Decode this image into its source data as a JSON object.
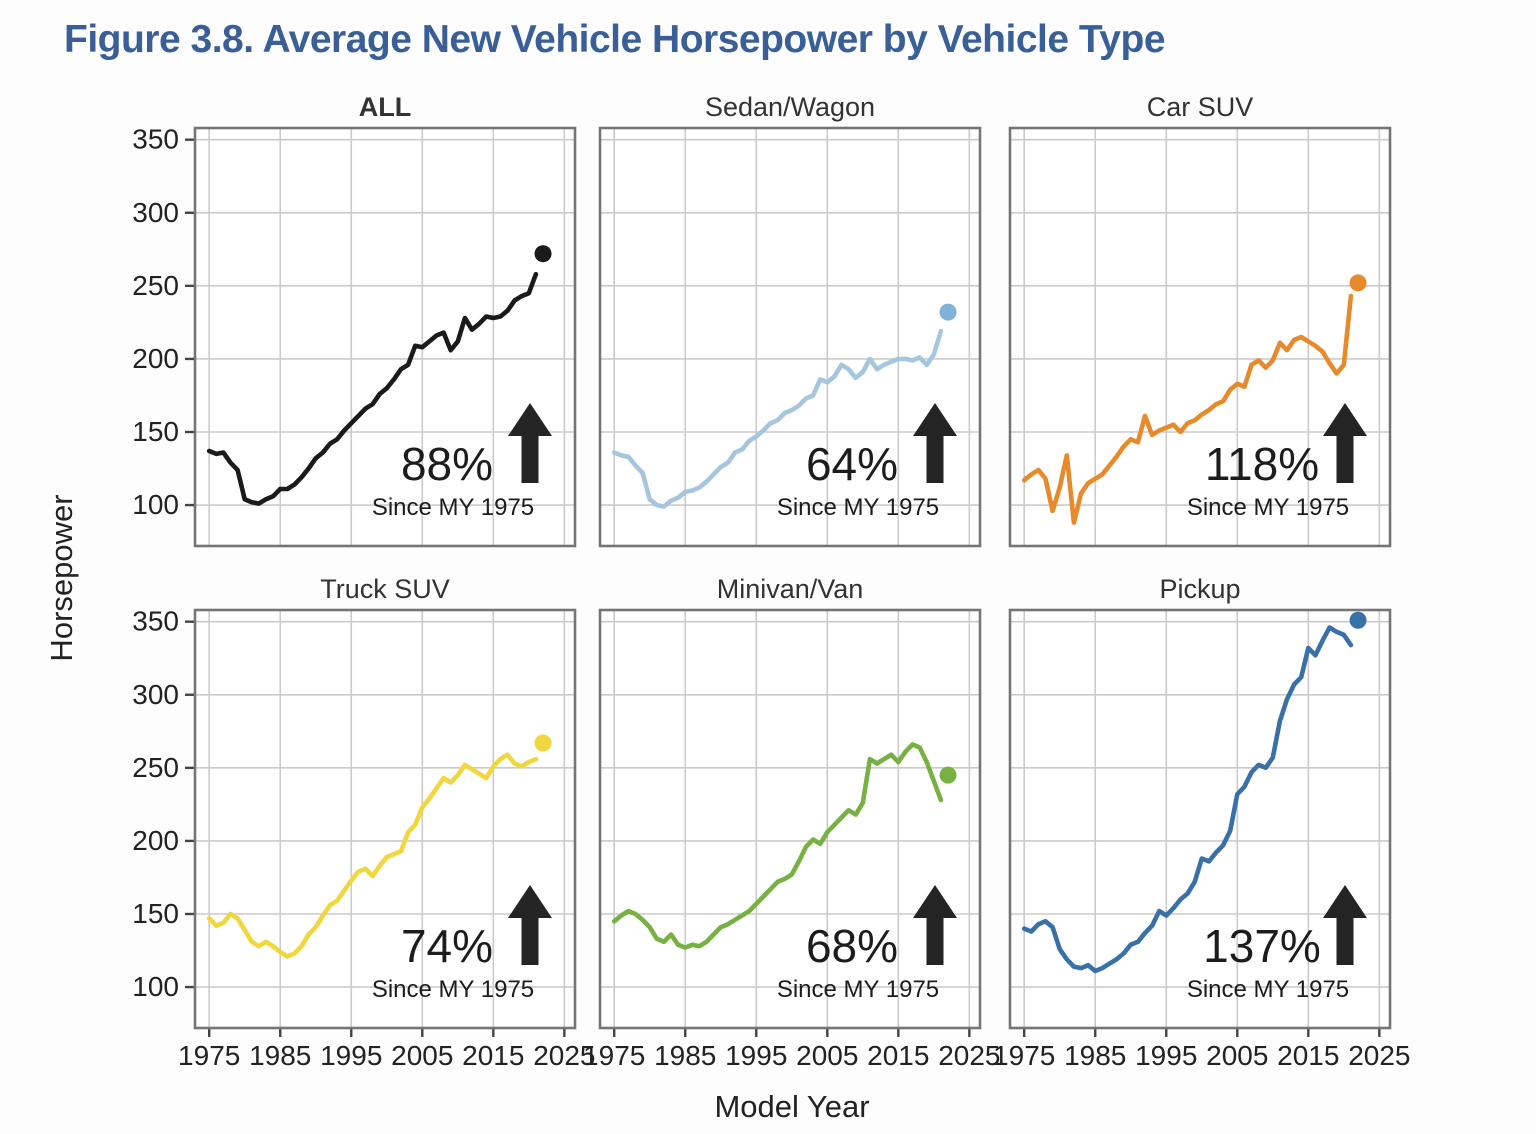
{
  "figure": {
    "title": "Figure 3.8. Average New Vehicle Horsepower by Vehicle Type",
    "title_color": "#3a5f96"
  },
  "chart_data": {
    "type": "line",
    "title": "Figure 3.8. Average New Vehicle Horsepower by Vehicle Type",
    "xlabel": "Model Year",
    "ylabel": "Horsepower",
    "x_ticks": [
      1975,
      1985,
      1995,
      2005,
      2015,
      2025
    ],
    "y_ticks": [
      100,
      150,
      200,
      250,
      300,
      350
    ],
    "x_range": [
      1973,
      2026.5
    ],
    "y_range": [
      72,
      358
    ],
    "grid": true,
    "legend": "none",
    "years_start": 1975,
    "line_years": "1975-2021 annual, separate dot = MY 2022",
    "arrow_icon_color": "#242424",
    "frame_color": "#757575",
    "grid_color": "#cbcbcb",
    "panels": [
      {
        "label": "ALL",
        "bold": true,
        "line_color": "#1a1a1a",
        "dot_color": "#1a1a1a",
        "pct": "88%",
        "since": "Since MY 1975",
        "values": [
          137,
          135,
          136,
          129,
          124,
          104,
          102,
          101,
          104,
          106,
          111,
          111,
          114,
          119,
          125,
          132,
          136,
          142,
          145,
          151,
          156,
          161,
          166,
          169,
          176,
          180,
          186,
          193,
          196,
          209,
          208,
          212,
          216,
          218,
          206,
          212,
          228,
          220,
          224,
          229,
          228,
          229,
          233,
          240,
          243,
          245,
          258
        ],
        "dot_year": 2022,
        "dot_value": 272
      },
      {
        "label": "Sedan/Wagon",
        "bold": false,
        "line_color": "#a5c6dc",
        "dot_color": "#7fb2d8",
        "pct": "64%",
        "since": "Since MY 1975",
        "values": [
          136,
          134,
          133,
          127,
          122,
          104,
          100,
          99,
          103,
          105,
          109,
          110,
          112,
          116,
          121,
          126,
          129,
          136,
          138,
          144,
          147,
          151,
          156,
          158,
          163,
          165,
          168,
          173,
          175,
          186,
          184,
          188,
          196,
          193,
          187,
          191,
          200,
          193,
          196,
          198,
          200,
          200,
          199,
          201,
          196,
          203,
          219
        ],
        "dot_year": 2022,
        "dot_value": 232
      },
      {
        "label": "Car SUV",
        "bold": false,
        "line_color": "#e68a2c",
        "dot_color": "#e68a2c",
        "pct": "118%",
        "since": "Since MY 1975",
        "values": [
          117,
          121,
          124,
          118,
          96,
          112,
          134,
          88,
          108,
          115,
          118,
          121,
          127,
          133,
          140,
          145,
          143,
          161,
          148,
          151,
          153,
          155,
          150,
          156,
          158,
          162,
          165,
          169,
          171,
          179,
          183,
          181,
          196,
          199,
          194,
          199,
          211,
          206,
          213,
          215,
          212,
          209,
          205,
          197,
          190,
          196,
          243
        ],
        "dot_year": 2022,
        "dot_value": 252
      },
      {
        "label": "Truck SUV",
        "bold": false,
        "line_color": "#f0d73e",
        "dot_color": "#f0d73e",
        "pct": "74%",
        "since": "Since MY 1975",
        "values": [
          147,
          142,
          144,
          150,
          147,
          139,
          131,
          128,
          131,
          128,
          124,
          121,
          123,
          128,
          136,
          141,
          149,
          156,
          159,
          166,
          173,
          179,
          181,
          176,
          183,
          189,
          191,
          193,
          206,
          211,
          223,
          229,
          236,
          243,
          240,
          245,
          252,
          249,
          246,
          243,
          251,
          256,
          259,
          253,
          251,
          254,
          256
        ],
        "dot_year": 2022,
        "dot_value": 267
      },
      {
        "label": "Minivan/Van",
        "bold": false,
        "line_color": "#77b043",
        "dot_color": "#77b043",
        "pct": "68%",
        "since": "Since MY 1975",
        "values": [
          145,
          149,
          152,
          150,
          146,
          141,
          133,
          131,
          136,
          129,
          127,
          129,
          128,
          131,
          136,
          141,
          143,
          146,
          149,
          152,
          157,
          162,
          167,
          172,
          174,
          177,
          186,
          196,
          201,
          198,
          206,
          211,
          216,
          221,
          218,
          226,
          256,
          253,
          256,
          259,
          254,
          261,
          266,
          264,
          254,
          241,
          228
        ],
        "dot_year": 2022,
        "dot_value": 245
      },
      {
        "label": "Pickup",
        "bold": false,
        "line_color": "#3a70a8",
        "dot_color": "#3a70a8",
        "pct": "137%",
        "since": "Since MY 1975",
        "values": [
          140,
          138,
          143,
          145,
          141,
          126,
          119,
          114,
          113,
          115,
          111,
          113,
          116,
          119,
          123,
          129,
          131,
          137,
          142,
          152,
          149,
          154,
          160,
          164,
          172,
          188,
          186,
          192,
          197,
          207,
          232,
          237,
          247,
          252,
          250,
          257,
          282,
          297,
          307,
          312,
          332,
          327,
          337,
          346,
          343,
          341,
          334
        ],
        "dot_year": 2022,
        "dot_value": 351
      }
    ]
  }
}
